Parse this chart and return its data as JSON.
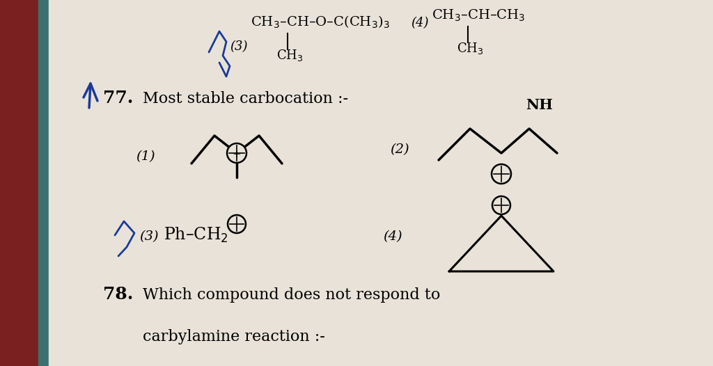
{
  "bg_color": "#d4cfc8",
  "left_bg": "#5a1010",
  "title_q77": "77.",
  "text_q77": "Most stable carbocation :-",
  "title_q78": "78.",
  "text_q78": "Which compound does not respond to",
  "text_q78b": "carbylamine reaction :-",
  "top_label3": "(3)",
  "top_label4": "(4)",
  "label1": "(1)",
  "label2": "(2)",
  "label3": "(3)",
  "label4": "(4)",
  "font_size_main": 16,
  "font_size_formula": 14,
  "font_size_label": 14
}
